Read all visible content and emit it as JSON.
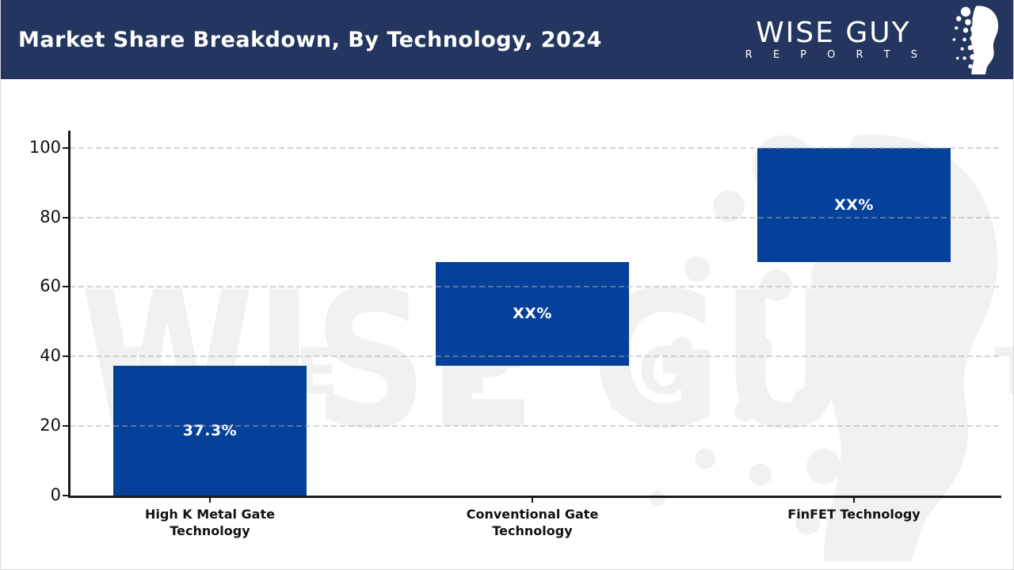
{
  "header": {
    "title": "Market Share Breakdown, By Technology, 2024",
    "logo": {
      "line1": "WISE GUY",
      "line2": "R E P O R T S"
    }
  },
  "watermark": {
    "line1": "WISE GUY",
    "line2": "R E P O R T S"
  },
  "chart_data": {
    "type": "bar",
    "variant": "floating-waterfall-percentage-share",
    "title": "Market Share Breakdown, By Technology, 2024",
    "categories": [
      "High K Metal Gate Technology",
      "Conventional Gate Technology",
      "FinFET Technology"
    ],
    "category_label_lines": [
      [
        "High K Metal Gate",
        "Technology"
      ],
      [
        "Conventional Gate",
        "Technology"
      ],
      [
        "FinFET Technology"
      ]
    ],
    "bars": [
      {
        "category": "High K Metal Gate Technology",
        "start": 0,
        "end": 37.3,
        "label": "37.3%"
      },
      {
        "category": "Conventional Gate Technology",
        "start": 37.3,
        "end": 67.2,
        "label": "XX%"
      },
      {
        "category": "FinFET Technology",
        "start": 67.2,
        "end": 100,
        "label": "XX%"
      }
    ],
    "xlabel": "",
    "ylabel": "",
    "ylim": [
      0,
      100
    ],
    "yticks": [
      0,
      20,
      40,
      60,
      80,
      100
    ],
    "grid": "horizontal-dashed",
    "legend": "none"
  },
  "colors": {
    "header_bg": "#24365F",
    "bar": "#05409A",
    "axis": "#1a1a1a",
    "gridline": "#cccccc",
    "bar_label": "#ffffff",
    "tick_text": "#111111",
    "watermark": "#f1f1f1"
  }
}
